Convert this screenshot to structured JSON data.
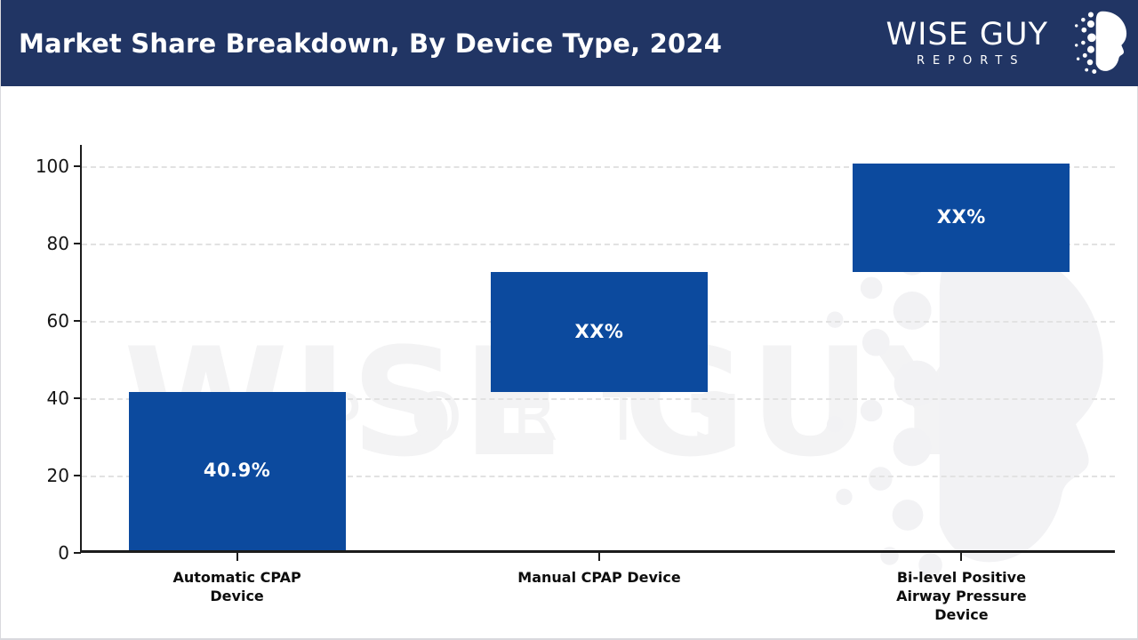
{
  "header": {
    "title": "Market Share Breakdown, By Device Type, 2024",
    "logo": {
      "primary": "WISE GUY",
      "secondary": "REPORTS"
    }
  },
  "watermark": {
    "primary": "WISE GUY",
    "secondary": "REPORTS"
  },
  "chart_data": {
    "type": "bar",
    "subtype": "floating-segment-waterfall",
    "title": "Market Share Breakdown, By Device Type, 2024",
    "categories": [
      "Automatic CPAP\nDevice",
      "Manual CPAP Device",
      "Bi-level Positive\nAirway Pressure\nDevice"
    ],
    "bars": [
      {
        "category": "Automatic CPAP Device",
        "start": 0,
        "end": 40.9,
        "label": "40.9%"
      },
      {
        "category": "Manual CPAP Device",
        "start": 40.9,
        "end": 72,
        "label": "XX%"
      },
      {
        "category": "Bi-level Positive Airway Pressure Device",
        "start": 72,
        "end": 100,
        "label": "XX%"
      }
    ],
    "xlabel": "",
    "ylabel": "",
    "yticks": [
      0,
      20,
      40,
      60,
      80,
      100
    ],
    "ylim": [
      0,
      105.5
    ],
    "grid": true,
    "gridstyle": "dashed",
    "legend": null,
    "bar_color": "#0c4a9e",
    "value_label_color": "#ffffff",
    "axis_color": "#1c1c1c",
    "header_bg_color": "#213564"
  }
}
